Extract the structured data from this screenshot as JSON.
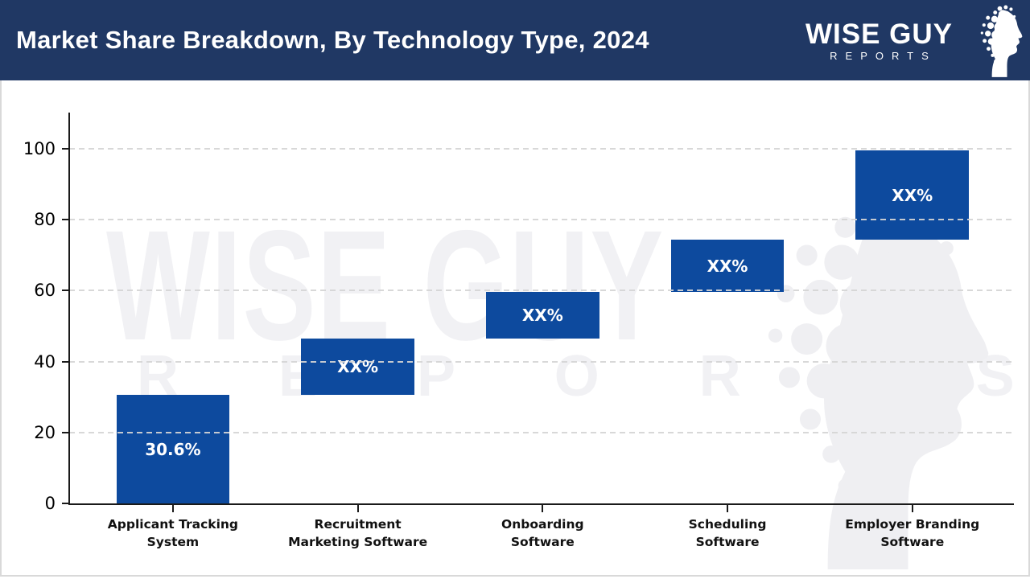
{
  "header": {
    "title": "Market Share Breakdown, By Technology Type, 2024",
    "logo": {
      "name_line": "WISE GUY",
      "sub_line": "REPORTS",
      "icon": "dot-face-profile-icon"
    }
  },
  "watermark": {
    "name_line": "WISE GUY",
    "sub_line": "R E P O R T S"
  },
  "colors": {
    "header_bg": "#203864",
    "header_text": "#ffffff",
    "bar": "#0d4a9e",
    "bar_label": "#ffffff",
    "grid": "#d8d8d8",
    "axis": "#1a1a1a",
    "watermark": "#f1f1f4",
    "frame_border": "#d9d9d9"
  },
  "chart_data": {
    "type": "bar",
    "variant": "waterfall-steps",
    "title": "Market Share Breakdown, By Technology Type, 2024",
    "xlabel": "",
    "ylabel": "",
    "legend": null,
    "grid": "horizontal-dashed",
    "ylim": [
      0,
      110
    ],
    "y_ticks": [
      0,
      20,
      40,
      60,
      80,
      100
    ],
    "categories": [
      "Applicant Tracking\nSystem",
      "Recruitment\nMarketing Software",
      "Onboarding\nSoftware",
      "Scheduling\nSoftware",
      "Employer Branding\nSoftware"
    ],
    "segments": [
      {
        "start": 0,
        "end": 30.6,
        "label": "30.6%"
      },
      {
        "start": 30.6,
        "end": 46.4,
        "label": "XX%"
      },
      {
        "start": 46.4,
        "end": 59.6,
        "label": "XX%"
      },
      {
        "start": 59.6,
        "end": 74.4,
        "label": "XX%"
      },
      {
        "start": 74.4,
        "end": 99.5,
        "label": "XX%"
      }
    ]
  }
}
